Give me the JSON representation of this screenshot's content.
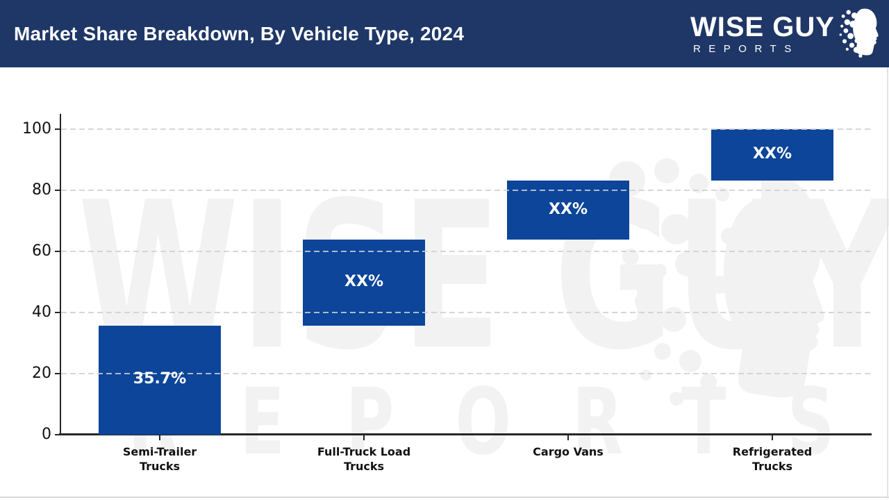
{
  "header": {
    "title": "Market Share Breakdown, By Vehicle Type, 2024",
    "bg_color": "#1e3766",
    "logo": {
      "line1": "WISE GUY",
      "line2": "REPORTS"
    }
  },
  "watermark": {
    "line1": "WISE GUY",
    "line2": "REPORTS"
  },
  "chart_data": {
    "type": "bar",
    "subtype": "waterfall",
    "title": "Market Share Breakdown, By Vehicle Type, 2024",
    "categories": [
      [
        "Semi-Trailer",
        "Trucks"
      ],
      [
        "Full-Truck Load",
        "Trucks"
      ],
      [
        "Cargo Vans"
      ],
      [
        "Refrigerated",
        "Trucks"
      ]
    ],
    "segments": [
      {
        "category": "Semi-Trailer Trucks",
        "start": 0,
        "end": 35.7,
        "label": "35.7%"
      },
      {
        "category": "Full-Truck Load Trucks",
        "start": 35.7,
        "end": 63.8,
        "label": "XX%"
      },
      {
        "category": "Cargo Vans",
        "start": 63.8,
        "end": 83.2,
        "label": "XX%"
      },
      {
        "category": "Refrigerated Trucks",
        "start": 83.2,
        "end": 100,
        "label": "XX%"
      }
    ],
    "yticks": [
      0,
      20,
      40,
      60,
      80,
      100
    ],
    "ylim": [
      0,
      100
    ],
    "xlabel": "",
    "ylabel": "",
    "grid": "horizontal-dashed",
    "legend": "none",
    "bar_color": "#0c4599",
    "bar_label_color": "#ffffff"
  }
}
